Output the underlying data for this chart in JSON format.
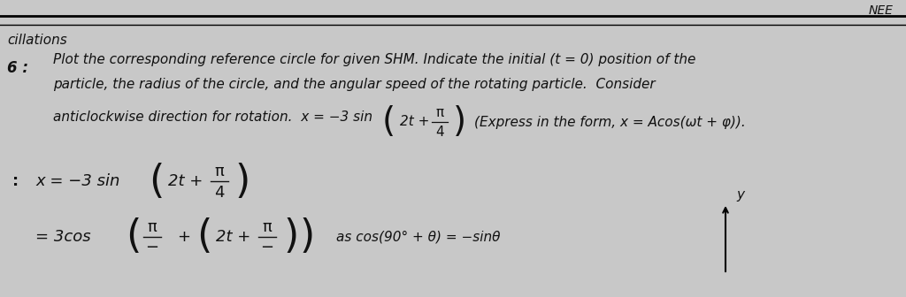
{
  "bg_color": "#c8c8c8",
  "body_color": "#111111",
  "header_text": "cillations",
  "top_right_text": "NEE",
  "problem_number": "6 :",
  "line1": "Plot the corresponding reference circle for given SHM. Indicate the initial (t = 0) position of the",
  "line2": "particle, the radius of the circle, and the angular speed of the rotating particle.  Consider",
  "line3a": "anticlockwise direction for rotation.  x = −3 sin",
  "line3b": "(Express in the form, x = Acos(ωt + φ)).",
  "eq1a": "x = −3 sin",
  "eq2a": "= 3cos",
  "eq3": "as cos(90° + θ) = −sinθ",
  "y_label": "y",
  "main_fs": 11,
  "eq_fs": 13
}
